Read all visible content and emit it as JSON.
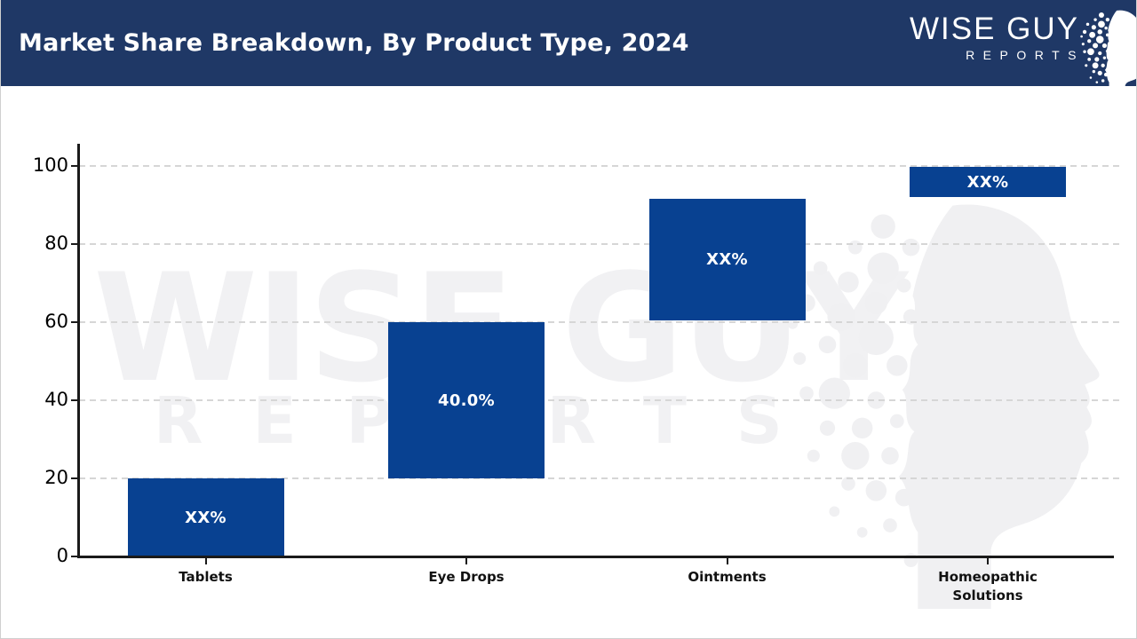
{
  "header": {
    "title": "Market Share Breakdown, By Product Type, 2024",
    "logo_line1": "WISE GUY",
    "logo_line2": "REPORTS",
    "background": "#1f3866"
  },
  "watermark": {
    "line1": "WISE GUY",
    "line2": "REPORTS"
  },
  "chart_data": {
    "type": "bar",
    "subtype": "floating-waterfall",
    "title": "Market Share Breakdown, By Product Type, 2024",
    "categories": [
      "Tablets",
      "Eye Drops",
      "Ointments",
      "Homeopathic Solutions"
    ],
    "bars": [
      {
        "category_lines": [
          "Tablets"
        ],
        "from": 0,
        "to": 20,
        "label": "XX%"
      },
      {
        "category_lines": [
          "Eye Drops"
        ],
        "from": 20,
        "to": 60,
        "label": "40.0%"
      },
      {
        "category_lines": [
          "Ointments"
        ],
        "from": 60.5,
        "to": 91.6,
        "label": "XX%"
      },
      {
        "category_lines": [
          "Homeopathic",
          "Solutions"
        ],
        "from": 92,
        "to": 99.7,
        "label": "XX%"
      }
    ],
    "y_ticks": [
      0,
      20,
      40,
      60,
      80,
      100
    ],
    "ylim": [
      0,
      105
    ],
    "xlabel": "",
    "ylabel": "",
    "grid": "horizontal-dashed",
    "legend": "none",
    "bar_color": "#084191",
    "bar_label_color": "#ffffff",
    "axis_color": "#1a1a1a",
    "gridline_color": "#d6d6d6"
  }
}
